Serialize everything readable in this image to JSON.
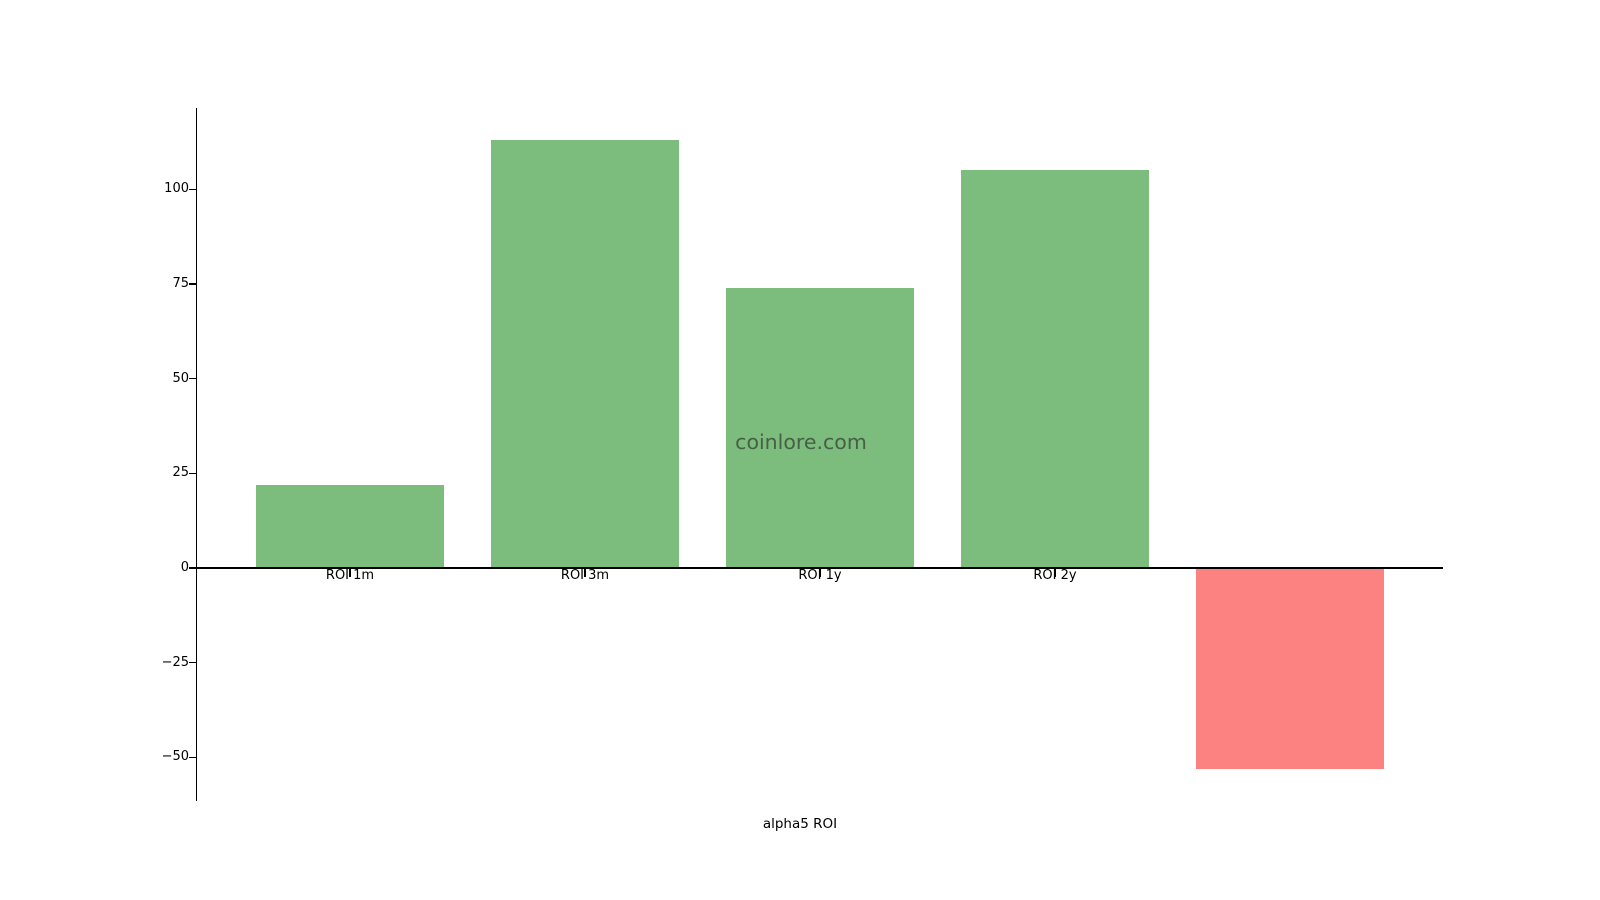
{
  "chart_data": {
    "type": "bar",
    "title": "alpha5 ROI",
    "title_position": "bottom",
    "watermark": "coinlore.com",
    "xlabel": "",
    "ylabel": "",
    "categories": [
      "ROI 1m",
      "ROI 3m",
      "ROI 1y",
      "ROI 2y",
      ""
    ],
    "values": [
      22,
      113,
      74,
      105,
      -53
    ],
    "bar_colors": [
      "#7CBC7C",
      "#7CBC7C",
      "#7CBC7C",
      "#7CBC7C",
      "#FC8181"
    ],
    "positive_color": "#7CBC7C",
    "negative_color": "#FC8181",
    "yticks": [
      {
        "v": 100,
        "label": "100"
      },
      {
        "v": 75,
        "label": "75"
      },
      {
        "v": 50,
        "label": "50"
      },
      {
        "v": 25,
        "label": "25"
      },
      {
        "v": 0,
        "label": "0"
      },
      {
        "v": -25,
        "label": "−25"
      },
      {
        "v": -50,
        "label": "−50"
      }
    ],
    "ylim": [
      -61.5,
      121.5
    ],
    "grid": false,
    "legend": null,
    "axis_color": "#000000"
  }
}
